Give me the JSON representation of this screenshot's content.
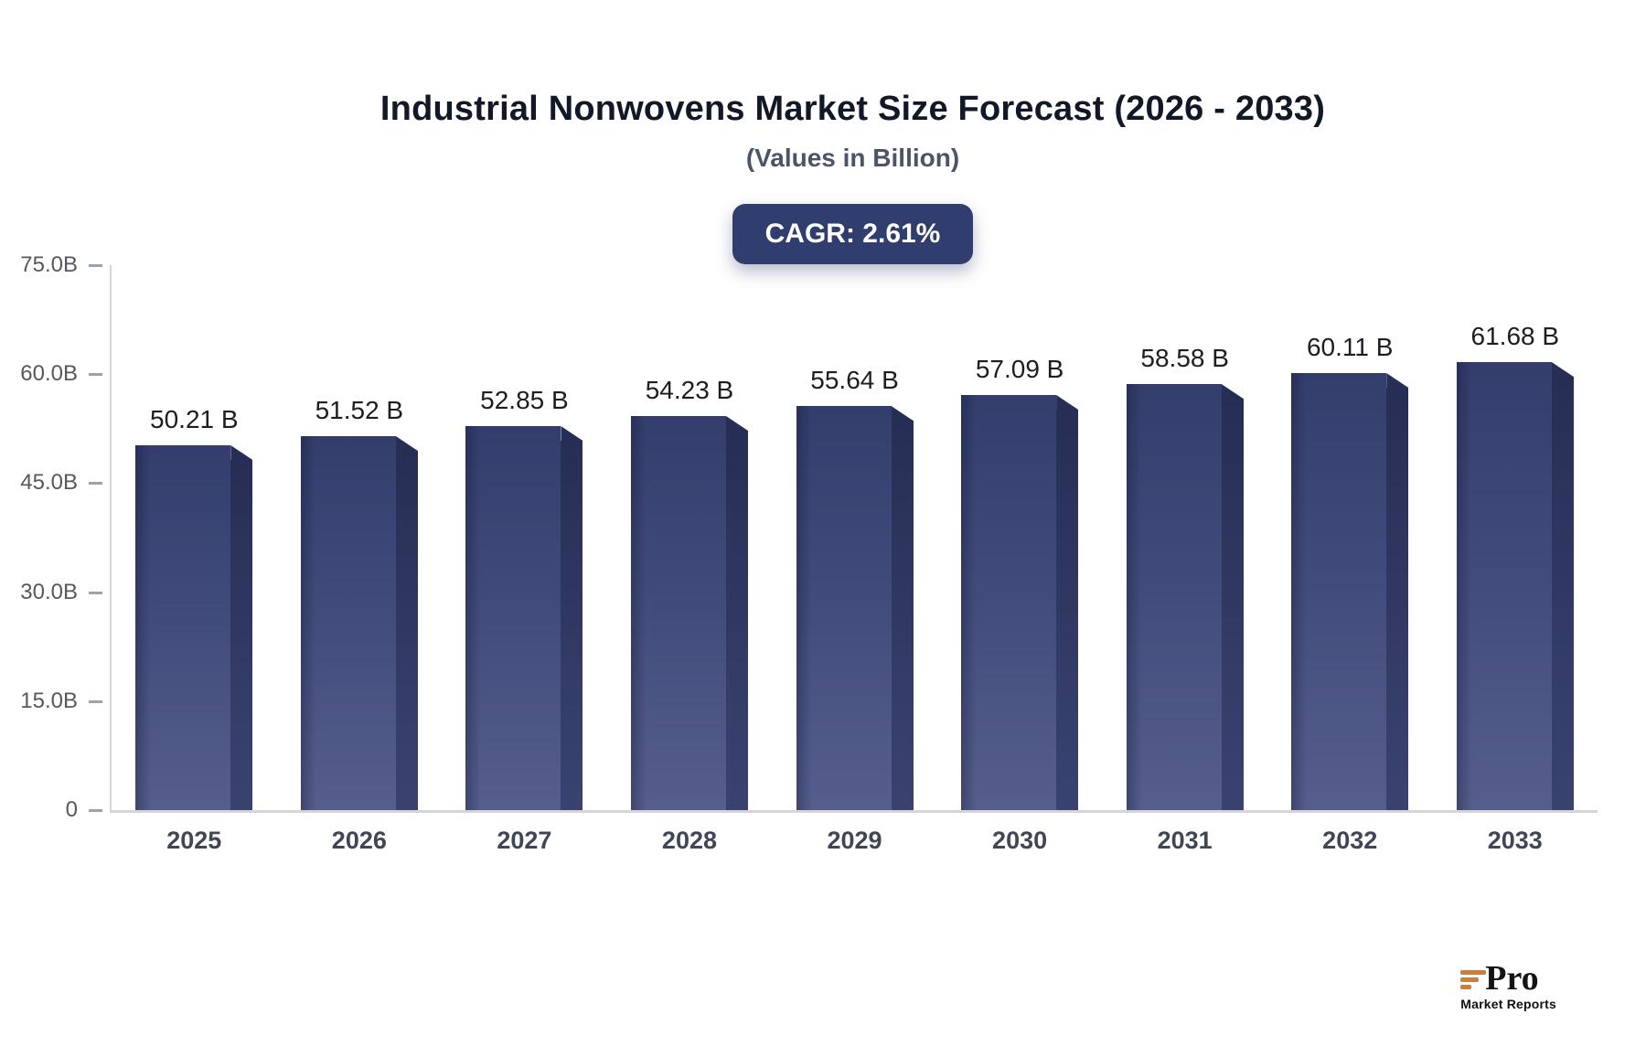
{
  "chart_data": {
    "type": "bar",
    "title": "Industrial Nonwovens Market Size Forecast (2026 - 2033)",
    "subtitle": "(Values in Billion)",
    "cagr_label": "CAGR: 2.61%",
    "categories": [
      "2025",
      "2026",
      "2027",
      "2028",
      "2029",
      "2030",
      "2031",
      "2032",
      "2033"
    ],
    "values": [
      50.21,
      51.52,
      52.85,
      54.23,
      55.64,
      57.09,
      58.58,
      60.11,
      61.68
    ],
    "value_labels": [
      "50.21 B",
      "51.52 B",
      "52.85 B",
      "54.23 B",
      "55.64 B",
      "57.09 B",
      "58.58 B",
      "60.11 B",
      "61.68 B"
    ],
    "xlabel": "",
    "ylabel": "",
    "ylim": [
      0,
      75
    ],
    "yticks": [
      75,
      60,
      45,
      30,
      15,
      0
    ],
    "ytick_labels": [
      "75.0B",
      "60.0B",
      "45.0B",
      "30.0B",
      "15.0B",
      "0"
    ],
    "grid": false,
    "legend": "none",
    "bar_style": "3d-extruded"
  },
  "colors": {
    "bar_face_top": "#343e6d",
    "bar_face_bottom": "#555e8c",
    "bar_side": "#272e55",
    "badge_bg": "#2f3e6f",
    "axis": "#d6d6da",
    "logo_orange": "#c97e3d"
  },
  "logo": {
    "name": "Pro",
    "subtext": "Market Reports"
  }
}
